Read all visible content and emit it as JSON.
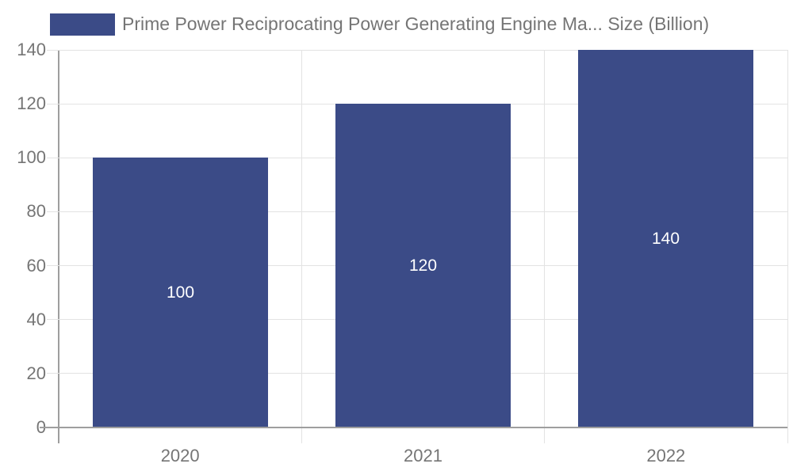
{
  "legend": {
    "label": "Prime Power Reciprocating Power Generating Engine Ma... Size (Billion)"
  },
  "colors": {
    "bar": "#3b4b87",
    "axis_line": "#9e9e9e",
    "gridline": "#e3e3e3",
    "tick_text": "#757575",
    "legend_text": "#757575",
    "data_label": "#ffffff",
    "background": "#ffffff"
  },
  "chart_data": {
    "type": "bar",
    "categories": [
      "2020",
      "2021",
      "2022"
    ],
    "series": [
      {
        "name": "Prime Power Reciprocating Power Generating Engine Ma... Size (Billion)",
        "values": [
          100,
          120,
          140
        ]
      }
    ],
    "data_labels": [
      "100",
      "120",
      "140"
    ],
    "title": "",
    "xlabel": "",
    "ylabel": "",
    "ylim": [
      0,
      140
    ],
    "yticks": [
      0,
      20,
      40,
      60,
      80,
      100,
      120,
      140
    ],
    "grid": true,
    "legend_position": "top-left"
  }
}
